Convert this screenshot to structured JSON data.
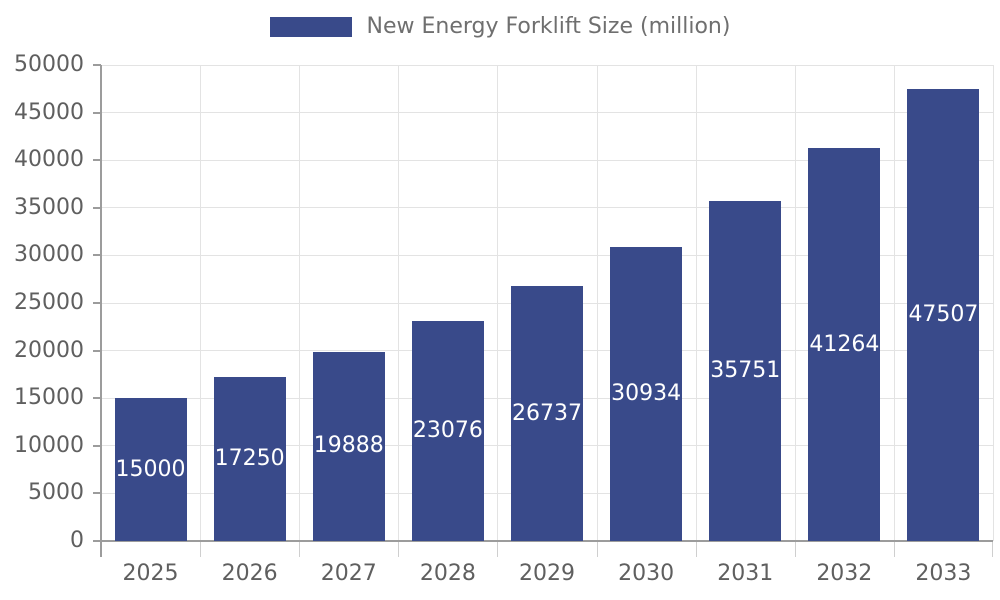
{
  "chart_data": {
    "type": "bar",
    "title": "",
    "legend": "New Energy Forklift Size (million)",
    "legend_position": "top-center",
    "categories": [
      "2025",
      "2026",
      "2027",
      "2028",
      "2029",
      "2030",
      "2031",
      "2032",
      "2033"
    ],
    "values": [
      15000,
      17250,
      19888,
      23076,
      26737,
      30934,
      35751,
      41264,
      47507
    ],
    "series": [
      {
        "name": "New Energy Forklift Size (million)",
        "values": [
          15000,
          17250,
          19888,
          23076,
          26737,
          30934,
          35751,
          41264,
          47507
        ]
      }
    ],
    "xlabel": "",
    "ylabel": "",
    "ylim": [
      0,
      50000
    ],
    "y_tick_step": 5000,
    "y_tick_labels": [
      "0",
      "5000",
      "10000",
      "15000",
      "20000",
      "25000",
      "30000",
      "35000",
      "40000",
      "45000",
      "50000"
    ],
    "grid": true,
    "value_labels_position": "inside-center",
    "colors": {
      "bar_fill": "#394A8A",
      "bar_value_text": "#ffffff",
      "grid_line": "#e3e3e3",
      "axis_line": "#9c9c9c",
      "x_tick_line": "#cfcfcf",
      "tick_label_text": "#5f5f5f",
      "legend_text": "#6f6f6f",
      "background": "#ffffff"
    }
  }
}
